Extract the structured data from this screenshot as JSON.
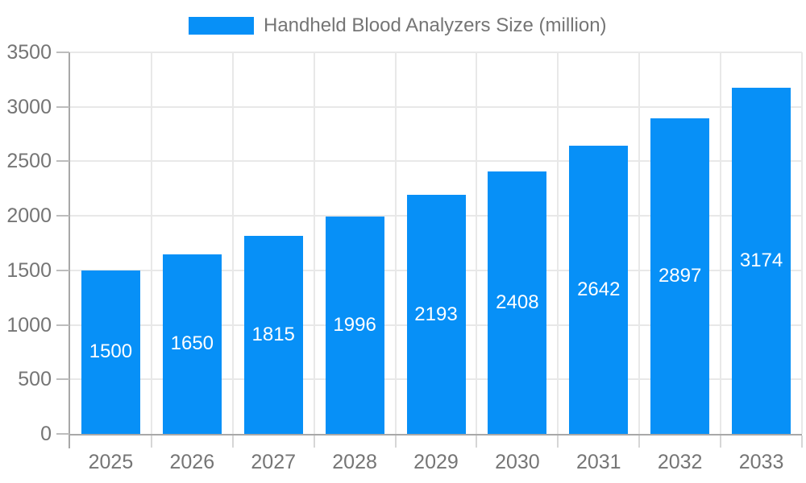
{
  "chart_data": {
    "type": "bar",
    "title": "Handheld Blood Analyzers Size (million)",
    "categories": [
      "2025",
      "2026",
      "2027",
      "2028",
      "2029",
      "2030",
      "2031",
      "2032",
      "2033"
    ],
    "values": [
      1500,
      1650,
      1815,
      1996,
      2193,
      2408,
      2642,
      2897,
      3174
    ],
    "y_ticks": [
      0,
      500,
      1000,
      1500,
      2000,
      2500,
      3000,
      3500
    ],
    "ylim": [
      0,
      3500
    ],
    "xlabel": "",
    "ylabel": "",
    "grid": true,
    "legend_position": "top",
    "value_label_position": "inside-center",
    "colors": {
      "bar": "#0790F7",
      "bar_value_label": "#ffffff",
      "axis_text": "#757575",
      "grid_line": "#e8e8e8",
      "axis_line": "#a8a8a8",
      "y_tick_mark": "#bdbdbd",
      "x_tick_mark": "#d6d6d6",
      "background": "#ffffff"
    }
  }
}
